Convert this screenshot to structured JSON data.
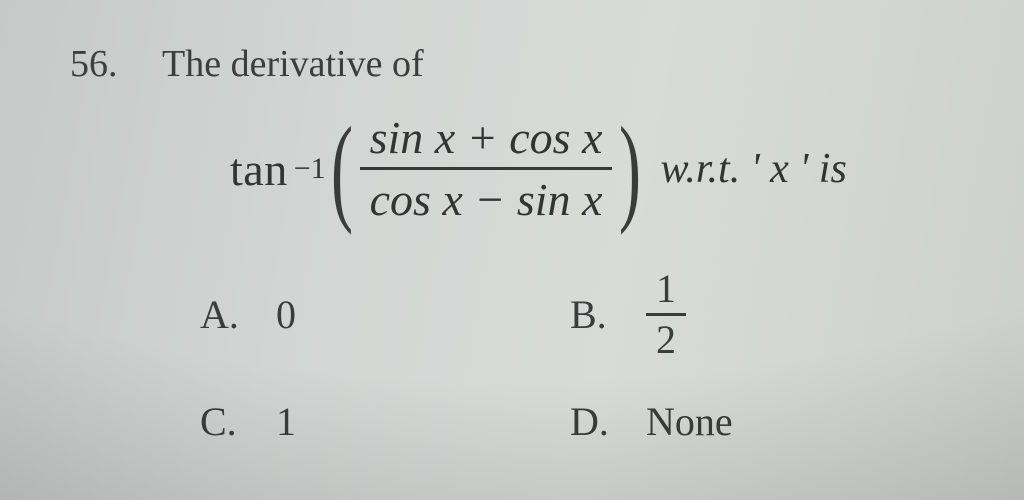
{
  "question": {
    "number": "56.",
    "prompt": "The derivative of",
    "formula": {
      "func": "tan",
      "exponent": "−1",
      "numerator": "sin x + cos x",
      "denominator": "cos x − sin x",
      "suffix": "w.r.t. ' x ' is"
    },
    "options": {
      "A": {
        "letter": "A.",
        "value": "0"
      },
      "B": {
        "letter": "B.",
        "num": "1",
        "den": "2"
      },
      "C": {
        "letter": "C.",
        "value": "1"
      },
      "D": {
        "letter": "D.",
        "value": "None"
      }
    }
  },
  "style": {
    "text_color": "#3a3c3c",
    "background_color": "#d2d5d3",
    "question_fontsize": 38,
    "formula_fontsize": 46,
    "option_fontsize": 40,
    "font_family": "Georgia, 'Times New Roman', serif"
  }
}
